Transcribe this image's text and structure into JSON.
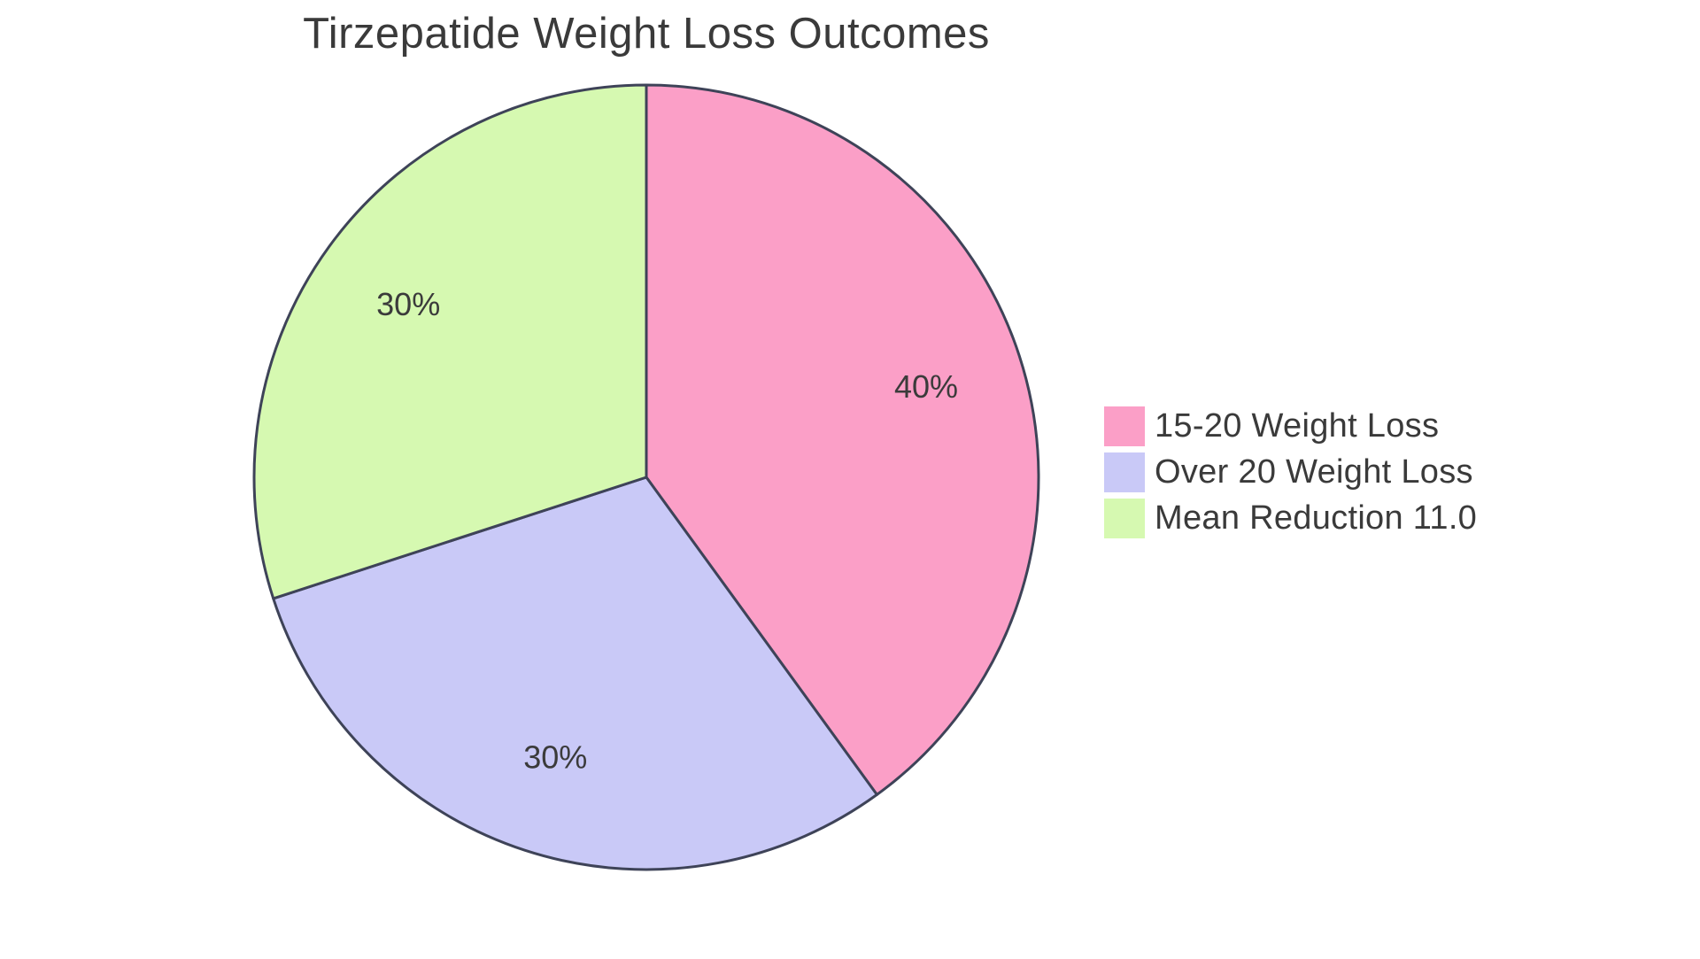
{
  "chart_data": {
    "type": "pie",
    "title": "Tirzepatide Weight Loss Outcomes",
    "slices": [
      {
        "label": "15-20 Weight Loss",
        "value": 40,
        "pct": "40%",
        "color": "#FB9FC7"
      },
      {
        "label": "Over 20 Weight Loss",
        "value": 30,
        "pct": "30%",
        "color": "#C9C9F7"
      },
      {
        "label": "Mean Reduction 11.0",
        "value": 30,
        "pct": "30%",
        "color": "#D6F9B1"
      }
    ],
    "start_angle": "top",
    "direction": "clockwise",
    "legend_position": "right",
    "grid": "off",
    "outline_color": "#3E4358",
    "label_color": "#3B3B3B",
    "background": "#FFFFFF"
  }
}
